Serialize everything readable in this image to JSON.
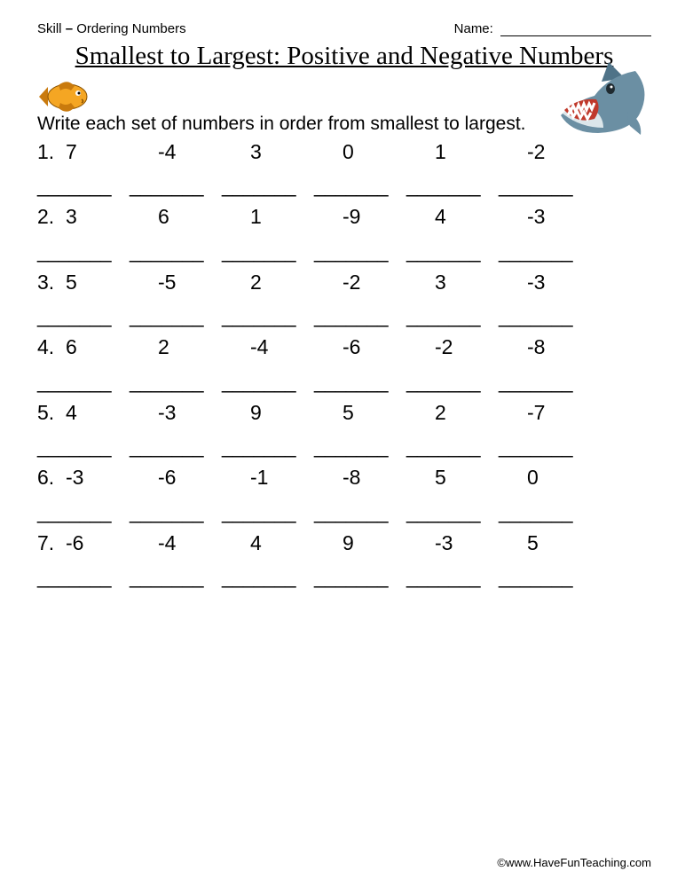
{
  "header": {
    "skill_label": "Skill",
    "skill_value": "Ordering Numbers",
    "name_label": "Name:"
  },
  "title": "Smallest to Largest: Positive and Negative Numbers",
  "instructions": "Write each set of numbers in order from smallest to largest.",
  "problems": [
    {
      "n": "1.",
      "nums": [
        "7",
        "-4",
        "3",
        "0",
        "1",
        "-2"
      ]
    },
    {
      "n": "2.",
      "nums": [
        "3",
        "6",
        "1",
        "-9",
        "4",
        "-3"
      ]
    },
    {
      "n": "3.",
      "nums": [
        "5",
        "-5",
        "2",
        "-2",
        "3",
        "-3"
      ]
    },
    {
      "n": "4.",
      "nums": [
        "6",
        "2",
        "-4",
        "-6",
        "-2",
        "-8"
      ]
    },
    {
      "n": "5.",
      "nums": [
        "4",
        "-3",
        "9",
        "5",
        "2",
        "-7"
      ]
    },
    {
      "n": "6.",
      "nums": [
        "-3",
        "-6",
        "-1",
        "-8",
        "5",
        "0"
      ]
    },
    {
      "n": "7.",
      "nums": [
        "-6",
        "-4",
        "4",
        "9",
        "-3",
        "5"
      ]
    }
  ],
  "blank": "_______",
  "footer": "©www.HaveFunTeaching.com",
  "style": {
    "body_font": "Comic Sans MS",
    "header_font": "Arial",
    "text_color": "#000000",
    "background_color": "#ffffff",
    "title_fontsize": 29,
    "instr_fontsize": 21,
    "num_fontsize": 23,
    "footer_fontsize": 13,
    "fish_colors": {
      "body": "#f5a623",
      "fin": "#c97a0d"
    },
    "shark_colors": {
      "body": "#6b8fa3",
      "belly": "#dce6ea",
      "mouth": "#c0392b",
      "teeth": "#ffffff",
      "eye": "#1f2a30"
    }
  }
}
